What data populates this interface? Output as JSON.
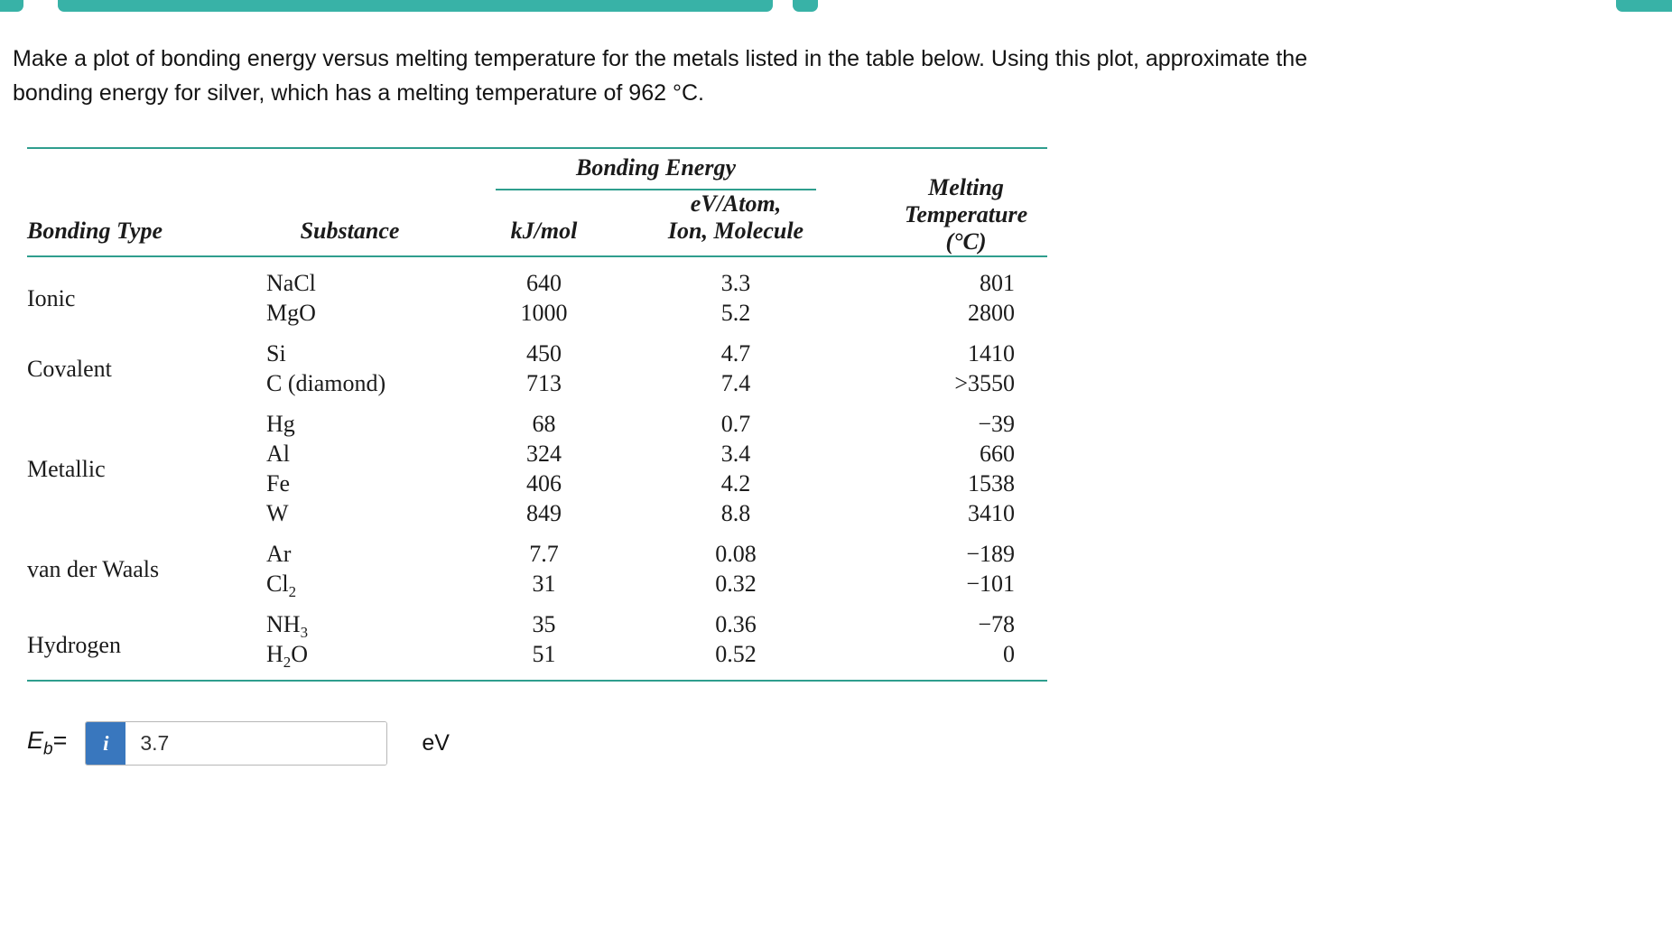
{
  "colors": {
    "table_rule": "#2f9e8e",
    "top_strip": "#38b2a7",
    "info_button": "#3977be"
  },
  "question": {
    "line1": "Make a plot of bonding energy versus melting temperature for the metals listed in the table below. Using this plot, approximate the",
    "line2": "bonding energy for silver, which has a melting temperature of 962 °C."
  },
  "table": {
    "headers": {
      "bonding_energy": "Bonding Energy",
      "melting_lines": [
        "Melting",
        "Temperature",
        "(°C)"
      ],
      "bonding_type": "Bonding Type",
      "substance": "Substance",
      "kj_mol": "kJ/mol",
      "ev_atom_lines": [
        "eV/Atom,",
        "Ion, Molecule"
      ]
    },
    "groups": [
      {
        "type": "Ionic",
        "rows": [
          {
            "substance": [
              {
                "text": "NaCl"
              }
            ],
            "kj": "640",
            "ev": "3.3",
            "melt": "801"
          },
          {
            "substance": [
              {
                "text": "MgO"
              }
            ],
            "kj": "1000",
            "ev": "5.2",
            "melt": "2800"
          }
        ]
      },
      {
        "type": "Covalent",
        "rows": [
          {
            "substance": [
              {
                "text": "Si"
              }
            ],
            "kj": "450",
            "ev": "4.7",
            "melt": "1410"
          },
          {
            "substance": [
              {
                "text": "C (diamond)"
              }
            ],
            "kj": "713",
            "ev": "7.4",
            "melt": ">3550"
          }
        ]
      },
      {
        "type": "Metallic",
        "rows": [
          {
            "substance": [
              {
                "text": "Hg"
              }
            ],
            "kj": "68",
            "ev": "0.7",
            "melt": "−39"
          },
          {
            "substance": [
              {
                "text": "Al"
              }
            ],
            "kj": "324",
            "ev": "3.4",
            "melt": "660"
          },
          {
            "substance": [
              {
                "text": "Fe"
              }
            ],
            "kj": "406",
            "ev": "4.2",
            "melt": "1538"
          },
          {
            "substance": [
              {
                "text": "W"
              }
            ],
            "kj": "849",
            "ev": "8.8",
            "melt": "3410"
          }
        ]
      },
      {
        "type": "van der Waals",
        "rows": [
          {
            "substance": [
              {
                "text": "Ar"
              }
            ],
            "kj": "7.7",
            "ev": "0.08",
            "melt": "−189"
          },
          {
            "substance": [
              {
                "text": "Cl"
              },
              {
                "sub": "2"
              }
            ],
            "kj": "31",
            "ev": "0.32",
            "melt": "−101"
          }
        ]
      },
      {
        "type": "Hydrogen",
        "rows": [
          {
            "substance": [
              {
                "text": "NH"
              },
              {
                "sub": "3"
              }
            ],
            "kj": "35",
            "ev": "0.36",
            "melt": "−78"
          },
          {
            "substance": [
              {
                "text": "H"
              },
              {
                "sub": "2"
              },
              {
                "text": "O"
              }
            ],
            "kj": "51",
            "ev": "0.52",
            "melt": "0"
          }
        ]
      }
    ]
  },
  "answer": {
    "symbol_main": "E",
    "symbol_sub": "b",
    "equals": "=",
    "info_icon": "i",
    "value": "3.7",
    "unit": "eV"
  }
}
